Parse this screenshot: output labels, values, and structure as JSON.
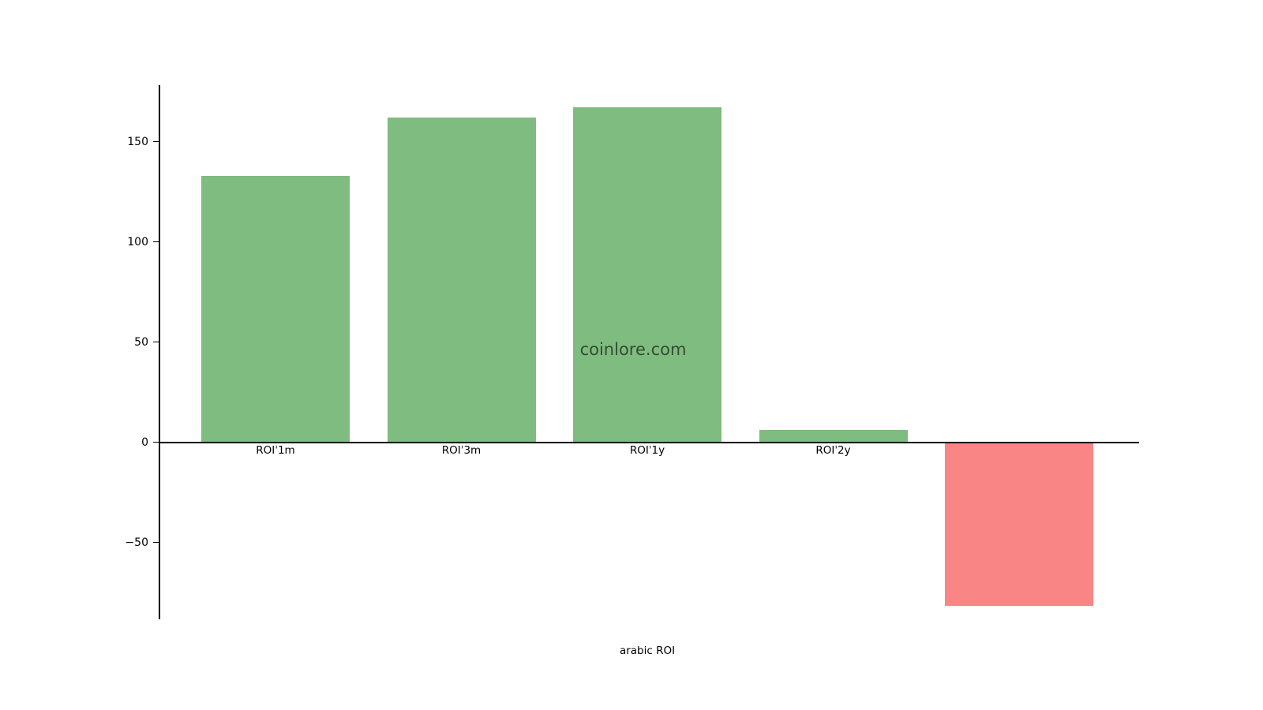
{
  "chart_data": {
    "type": "bar",
    "categories": [
      "ROIˈ1m",
      "ROIˈ3m",
      "ROIˈ1y",
      "ROIˈ2y",
      ""
    ],
    "values": [
      133,
      162,
      167,
      6,
      -81
    ],
    "bar_colors": [
      "#7fbc7f",
      "#7fbc7f",
      "#7fbc7f",
      "#7fbc7f",
      "#fa8585"
    ],
    "positive_color": "#7fbc7f",
    "negative_color": "#fa8585",
    "title": "",
    "xlabel": "arabic ROI",
    "ylabel": "",
    "ylim": [
      -88,
      178
    ],
    "yticks": [
      150,
      100,
      50,
      0,
      -50
    ],
    "grid": false,
    "legend": null,
    "watermark": "coinlore.com"
  }
}
